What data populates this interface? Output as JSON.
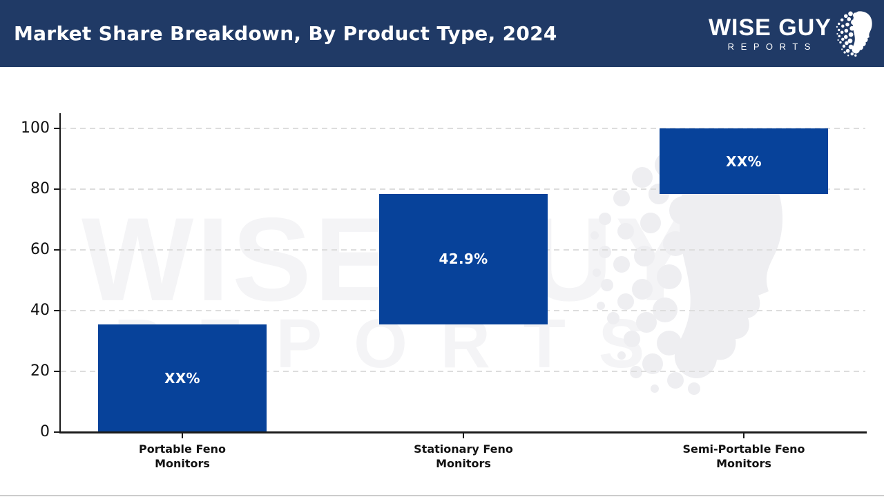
{
  "header": {
    "title": "Market Share Breakdown, By Product Type, 2024",
    "logo": {
      "line1": "WISE GUY",
      "line2": "R E P O R T S"
    }
  },
  "watermark": {
    "line1": "WISE GUY",
    "line2": "R E P O R T S"
  },
  "chart_data": {
    "type": "bar",
    "subtype": "waterfall-floating-bars",
    "title": "Market Share Breakdown, By Product Type, 2024",
    "xlabel": "",
    "ylabel": "",
    "ylim": [
      0,
      105
    ],
    "yticks": [
      0,
      20,
      40,
      60,
      80,
      100
    ],
    "grid": "horizontal-dashed",
    "legend": "none",
    "categories": [
      "Portable Feno Monitors",
      "Stationary Feno Monitors",
      "Semi-Portable Feno Monitors"
    ],
    "segment_heights_pct": [
      35.5,
      42.9,
      21.6
    ],
    "bars": [
      {
        "category_line1": "Portable Feno",
        "category_line2": "Monitors",
        "base": 0,
        "top": 35.5,
        "label": "XX%"
      },
      {
        "category_line1": "Stationary Feno",
        "category_line2": "Monitors",
        "base": 35.5,
        "top": 78.4,
        "label": "42.9%"
      },
      {
        "category_line1": "Semi-Portable Feno",
        "category_line2": "Monitors",
        "base": 78.4,
        "top": 100,
        "label": "XX%"
      }
    ]
  },
  "colors": {
    "header_bg": "#203a66",
    "bar": "#07429a",
    "grid": "#dddddd",
    "axis": "#1a1a1a",
    "watermark": "#f4f4f6",
    "bottom_rule": "#cccccc"
  }
}
